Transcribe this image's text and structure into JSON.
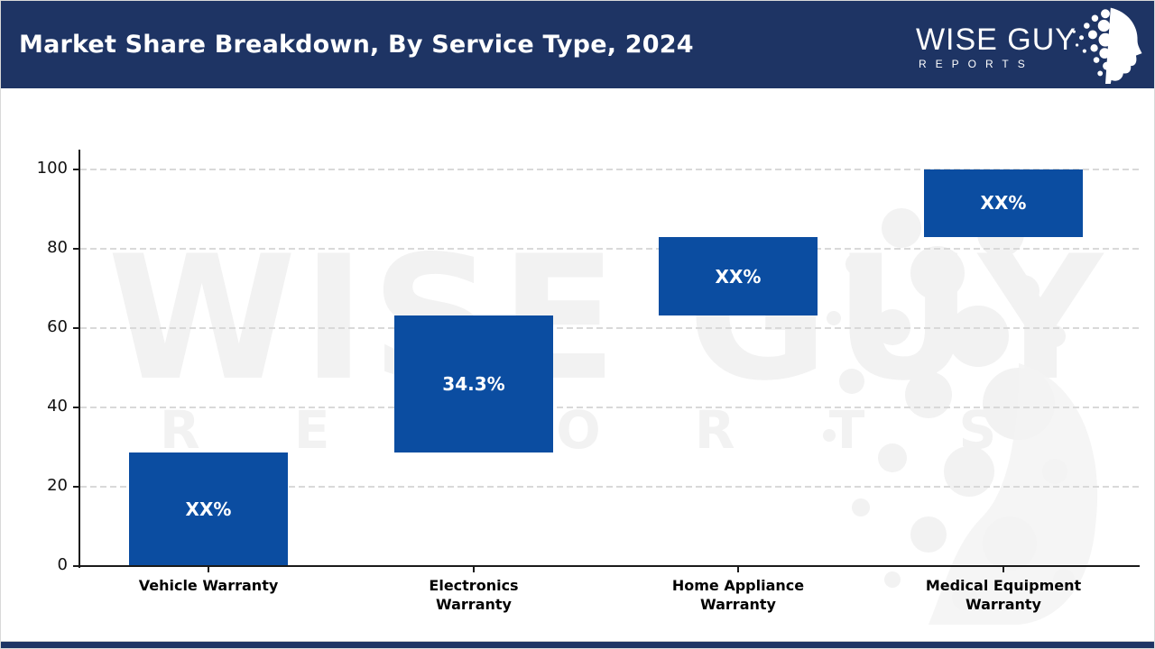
{
  "header": {
    "title": "Market Share Breakdown, By Service Type, 2024",
    "logo": {
      "wordmark": "WISE GUY",
      "sub": "REPORTS"
    }
  },
  "watermark": {
    "big": "WISE GUY",
    "sub": "R E P O R T S"
  },
  "chart_data": {
    "type": "bar",
    "variant": "waterfall",
    "title": "Market Share Breakdown, By Service Type, 2024",
    "xlabel": "",
    "ylabel": "",
    "categories": [
      "Vehicle Warranty",
      "Electronics Warranty",
      "Home Appliance Warranty",
      "Medical Equipment Warranty"
    ],
    "bars": [
      {
        "category": "Vehicle Warranty",
        "label_lines": [
          "Vehicle Warranty"
        ],
        "start": 0,
        "end": 28.7,
        "value_label": "XX%"
      },
      {
        "category": "Electronics Warranty",
        "label_lines": [
          "Electronics",
          "Warranty"
        ],
        "start": 28.7,
        "end": 63.0,
        "value_label": "34.3%"
      },
      {
        "category": "Home Appliance Warranty",
        "label_lines": [
          "Home Appliance",
          "Warranty"
        ],
        "start": 63.0,
        "end": 82.9,
        "value_label": "XX%"
      },
      {
        "category": "Medical Equipment Warranty",
        "label_lines": [
          "Medical Equipment",
          "Warranty"
        ],
        "start": 82.9,
        "end": 100,
        "value_label": "XX%"
      }
    ],
    "yticks": [
      0,
      20,
      40,
      60,
      80,
      100
    ],
    "ylim": [
      0,
      105
    ],
    "grid": {
      "horizontal": true,
      "style": "dashed"
    },
    "legend": "none"
  },
  "colors": {
    "header_bg": "#1e3464",
    "footer_bg": "#1e3464",
    "bar_fill": "#0b4da1",
    "bar_label_text": "#ffffff",
    "axis_line": "#1a1a1a",
    "tick_text": "#111111",
    "gridline": "#d9d9d9",
    "watermark": "#f2f2f2",
    "title_text": "#ffffff"
  }
}
